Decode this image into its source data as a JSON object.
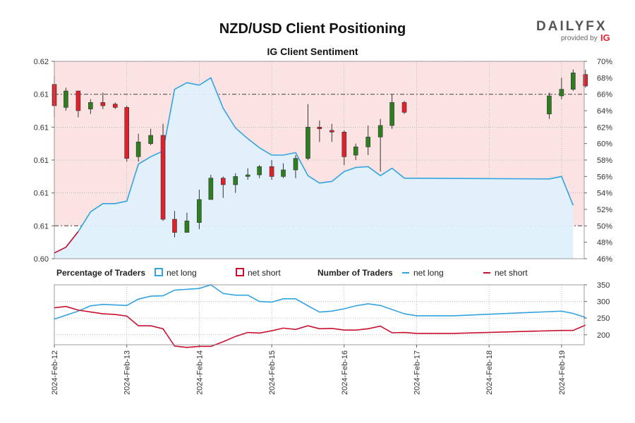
{
  "header": {
    "title": "NZD/USD Client Positioning",
    "subtitle": "IG Client Sentiment"
  },
  "brand": {
    "logo_text": "DAILYFX",
    "provided_by": "provided by",
    "ig": "IG"
  },
  "colors": {
    "long_line": "#33a3e0",
    "short_line": "#c8102e",
    "candle_up": "#2e7d1e",
    "candle_down": "#e0202a",
    "bg_above_50": "#fbe3e3",
    "fill_long": "#dff0fb"
  },
  "legend": {
    "pct_title": "Percentage of Traders",
    "pct_long": "net long",
    "pct_short": "net short",
    "num_title": "Number of Traders",
    "num_long": "net long",
    "num_short": "net short"
  },
  "chart_data": [
    {
      "type": "candlestick",
      "title": "NZD/USD Client Positioning",
      "subtitle": "IG Client Sentiment",
      "x": [
        "2024-Feb-12",
        "2024-Feb-13",
        "2024-Feb-14",
        "2024-Feb-15",
        "2024-Feb-16",
        "2024-Feb-17",
        "2024-Feb-18",
        "2024-Feb-19"
      ],
      "left_axis_ticks": [
        "0.60",
        "0.61",
        "0.61",
        "0.61",
        "0.61",
        "0.61",
        "0.62"
      ],
      "right_axis_ticks": [
        "46%",
        "48%",
        "50%",
        "52%",
        "54%",
        "56%",
        "58%",
        "60%",
        "62%",
        "64%",
        "66%",
        "68%",
        "70%"
      ],
      "right_ylim": [
        46,
        70
      ],
      "candles": [
        {
          "t": 0.0,
          "o": 0.6136,
          "h": 0.6141,
          "l": 0.6116,
          "c": 0.6123
        },
        {
          "t": 0.16,
          "o": 0.6122,
          "h": 0.6134,
          "l": 0.612,
          "c": 0.6132
        },
        {
          "t": 0.33,
          "o": 0.6132,
          "h": 0.6132,
          "l": 0.6116,
          "c": 0.612
        },
        {
          "t": 0.5,
          "o": 0.6121,
          "h": 0.6127,
          "l": 0.6118,
          "c": 0.6125
        },
        {
          "t": 0.67,
          "o": 0.6125,
          "h": 0.6131,
          "l": 0.6121,
          "c": 0.6123
        },
        {
          "t": 0.84,
          "o": 0.6124,
          "h": 0.6125,
          "l": 0.6121,
          "c": 0.6122
        },
        {
          "t": 1.0,
          "o": 0.6122,
          "h": 0.6123,
          "l": 0.6089,
          "c": 0.6091
        },
        {
          "t": 1.16,
          "o": 0.6092,
          "h": 0.6106,
          "l": 0.6089,
          "c": 0.6101
        },
        {
          "t": 1.33,
          "o": 0.61,
          "h": 0.6109,
          "l": 0.6099,
          "c": 0.6105
        },
        {
          "t": 1.5,
          "o": 0.6105,
          "h": 0.6112,
          "l": 0.6053,
          "c": 0.6054
        },
        {
          "t": 1.66,
          "o": 0.6054,
          "h": 0.6059,
          "l": 0.6043,
          "c": 0.6046
        },
        {
          "t": 1.83,
          "o": 0.6046,
          "h": 0.6058,
          "l": 0.6046,
          "c": 0.6053
        },
        {
          "t": 2.0,
          "o": 0.6052,
          "h": 0.6072,
          "l": 0.6048,
          "c": 0.6066
        },
        {
          "t": 2.16,
          "o": 0.6066,
          "h": 0.6081,
          "l": 0.6066,
          "c": 0.6079
        },
        {
          "t": 2.33,
          "o": 0.6079,
          "h": 0.608,
          "l": 0.6067,
          "c": 0.6075
        },
        {
          "t": 2.5,
          "o": 0.6075,
          "h": 0.6082,
          "l": 0.607,
          "c": 0.608
        },
        {
          "t": 2.67,
          "o": 0.608,
          "h": 0.6085,
          "l": 0.6078,
          "c": 0.6081
        },
        {
          "t": 2.83,
          "o": 0.6081,
          "h": 0.6087,
          "l": 0.6079,
          "c": 0.6086
        },
        {
          "t": 3.0,
          "o": 0.6086,
          "h": 0.609,
          "l": 0.6078,
          "c": 0.608
        },
        {
          "t": 3.16,
          "o": 0.608,
          "h": 0.6088,
          "l": 0.6079,
          "c": 0.6084
        },
        {
          "t": 3.33,
          "o": 0.6084,
          "h": 0.6093,
          "l": 0.6079,
          "c": 0.6091
        },
        {
          "t": 3.5,
          "o": 0.6091,
          "h": 0.6124,
          "l": 0.609,
          "c": 0.611
        },
        {
          "t": 3.66,
          "o": 0.611,
          "h": 0.6114,
          "l": 0.6101,
          "c": 0.6109
        },
        {
          "t": 3.83,
          "o": 0.6108,
          "h": 0.6112,
          "l": 0.6101,
          "c": 0.6107
        },
        {
          "t": 4.0,
          "o": 0.6107,
          "h": 0.6108,
          "l": 0.6087,
          "c": 0.6092
        },
        {
          "t": 4.16,
          "o": 0.6093,
          "h": 0.61,
          "l": 0.609,
          "c": 0.6098
        },
        {
          "t": 4.33,
          "o": 0.6098,
          "h": 0.6111,
          "l": 0.6093,
          "c": 0.6104
        },
        {
          "t": 4.5,
          "o": 0.6104,
          "h": 0.6115,
          "l": 0.6083,
          "c": 0.6111
        },
        {
          "t": 4.66,
          "o": 0.6111,
          "h": 0.613,
          "l": 0.6109,
          "c": 0.6125
        },
        {
          "t": 4.83,
          "o": 0.6125,
          "h": 0.6126,
          "l": 0.6118,
          "c": 0.6119
        },
        {
          "t": 6.83,
          "o": 0.6118,
          "h": 0.6131,
          "l": 0.6115,
          "c": 0.6129
        },
        {
          "t": 7.0,
          "o": 0.6129,
          "h": 0.614,
          "l": 0.6127,
          "c": 0.6133
        },
        {
          "t": 7.16,
          "o": 0.6133,
          "h": 0.6145,
          "l": 0.6132,
          "c": 0.6143
        },
        {
          "t": 7.33,
          "o": 0.6142,
          "h": 0.6145,
          "l": 0.6134,
          "c": 0.6135
        }
      ],
      "net_long_pct": [
        {
          "t": 0.0,
          "v": 46.7
        },
        {
          "t": 0.16,
          "v": 47.4
        },
        {
          "t": 0.33,
          "v": 49.3
        },
        {
          "t": 0.5,
          "v": 51.7
        },
        {
          "t": 0.67,
          "v": 52.7
        },
        {
          "t": 0.84,
          "v": 52.7
        },
        {
          "t": 1.0,
          "v": 53.0
        },
        {
          "t": 1.16,
          "v": 57.5
        },
        {
          "t": 1.33,
          "v": 58.4
        },
        {
          "t": 1.5,
          "v": 59.1
        },
        {
          "t": 1.66,
          "v": 66.6
        },
        {
          "t": 1.83,
          "v": 67.4
        },
        {
          "t": 2.0,
          "v": 67.1
        },
        {
          "t": 2.16,
          "v": 68.0
        },
        {
          "t": 2.33,
          "v": 64.3
        },
        {
          "t": 2.5,
          "v": 61.9
        },
        {
          "t": 2.67,
          "v": 60.6
        },
        {
          "t": 2.83,
          "v": 59.5
        },
        {
          "t": 3.0,
          "v": 58.6
        },
        {
          "t": 3.16,
          "v": 58.6
        },
        {
          "t": 3.33,
          "v": 58.9
        },
        {
          "t": 3.5,
          "v": 56.1
        },
        {
          "t": 3.66,
          "v": 55.2
        },
        {
          "t": 3.83,
          "v": 55.4
        },
        {
          "t": 4.0,
          "v": 56.6
        },
        {
          "t": 4.16,
          "v": 57.1
        },
        {
          "t": 4.33,
          "v": 57.2
        },
        {
          "t": 4.5,
          "v": 56.1
        },
        {
          "t": 4.66,
          "v": 57.0
        },
        {
          "t": 4.83,
          "v": 55.8
        },
        {
          "t": 6.83,
          "v": 55.7
        },
        {
          "t": 7.0,
          "v": 56.0
        },
        {
          "t": 7.16,
          "v": 52.5
        }
      ]
    },
    {
      "type": "line",
      "ylim": [
        170,
        350
      ],
      "y_ticks": [
        "200",
        "250",
        "300",
        "350"
      ],
      "series": [
        {
          "name": "net long",
          "points": [
            {
              "t": 0.0,
              "v": 247
            },
            {
              "t": 0.33,
              "v": 271
            },
            {
              "t": 0.5,
              "v": 287
            },
            {
              "t": 0.67,
              "v": 291
            },
            {
              "t": 1.0,
              "v": 288
            },
            {
              "t": 1.16,
              "v": 307
            },
            {
              "t": 1.33,
              "v": 316
            },
            {
              "t": 1.5,
              "v": 317
            },
            {
              "t": 1.66,
              "v": 334
            },
            {
              "t": 2.0,
              "v": 339
            },
            {
              "t": 2.16,
              "v": 350
            },
            {
              "t": 2.33,
              "v": 324
            },
            {
              "t": 2.5,
              "v": 319
            },
            {
              "t": 2.67,
              "v": 319
            },
            {
              "t": 2.83,
              "v": 300
            },
            {
              "t": 3.0,
              "v": 298
            },
            {
              "t": 3.16,
              "v": 308
            },
            {
              "t": 3.33,
              "v": 308
            },
            {
              "t": 3.5,
              "v": 287
            },
            {
              "t": 3.66,
              "v": 268
            },
            {
              "t": 3.83,
              "v": 271
            },
            {
              "t": 4.0,
              "v": 278
            },
            {
              "t": 4.16,
              "v": 287
            },
            {
              "t": 4.33,
              "v": 293
            },
            {
              "t": 4.5,
              "v": 288
            },
            {
              "t": 4.83,
              "v": 263
            },
            {
              "t": 5.0,
              "v": 257
            },
            {
              "t": 5.5,
              "v": 257
            },
            {
              "t": 7.0,
              "v": 271
            },
            {
              "t": 7.16,
              "v": 264
            },
            {
              "t": 7.33,
              "v": 252
            }
          ]
        },
        {
          "name": "net short",
          "points": [
            {
              "t": 0.0,
              "v": 281
            },
            {
              "t": 0.16,
              "v": 285
            },
            {
              "t": 0.33,
              "v": 274
            },
            {
              "t": 0.67,
              "v": 263
            },
            {
              "t": 0.84,
              "v": 261
            },
            {
              "t": 1.0,
              "v": 256
            },
            {
              "t": 1.16,
              "v": 227
            },
            {
              "t": 1.33,
              "v": 227
            },
            {
              "t": 1.5,
              "v": 218
            },
            {
              "t": 1.66,
              "v": 166
            },
            {
              "t": 1.83,
              "v": 162
            },
            {
              "t": 2.0,
              "v": 165
            },
            {
              "t": 2.16,
              "v": 165
            },
            {
              "t": 2.33,
              "v": 179
            },
            {
              "t": 2.5,
              "v": 195
            },
            {
              "t": 2.67,
              "v": 207
            },
            {
              "t": 2.83,
              "v": 205
            },
            {
              "t": 3.0,
              "v": 212
            },
            {
              "t": 3.16,
              "v": 220
            },
            {
              "t": 3.33,
              "v": 216
            },
            {
              "t": 3.5,
              "v": 227
            },
            {
              "t": 3.66,
              "v": 218
            },
            {
              "t": 3.83,
              "v": 219
            },
            {
              "t": 4.0,
              "v": 214
            },
            {
              "t": 4.16,
              "v": 214
            },
            {
              "t": 4.33,
              "v": 218
            },
            {
              "t": 4.5,
              "v": 226
            },
            {
              "t": 4.66,
              "v": 206
            },
            {
              "t": 4.83,
              "v": 207
            },
            {
              "t": 5.0,
              "v": 204
            },
            {
              "t": 5.5,
              "v": 204
            },
            {
              "t": 7.0,
              "v": 213
            },
            {
              "t": 7.16,
              "v": 213
            },
            {
              "t": 7.33,
              "v": 229
            }
          ]
        }
      ]
    }
  ]
}
